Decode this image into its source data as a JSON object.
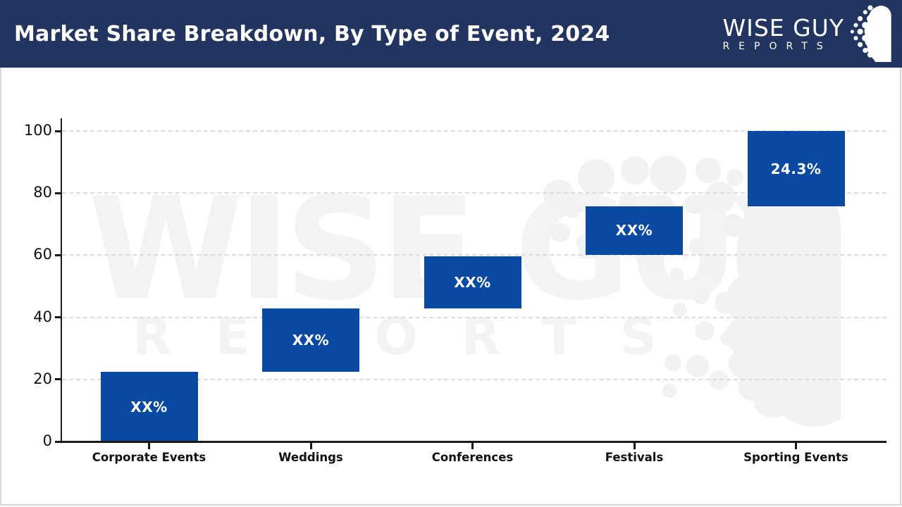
{
  "header": {
    "title": "Market Share Breakdown, By Type of Event, 2024",
    "bg_color": "#223460",
    "logo": {
      "line1": "WISE GUY",
      "line2": "REPORTS"
    }
  },
  "watermark": {
    "line1": "WISE GUY",
    "line2": "REPORTS"
  },
  "chart_data": {
    "type": "bar",
    "subtype": "waterfall",
    "title": "Market Share Breakdown, By Type of Event, 2024",
    "categories": [
      "Corporate Events",
      "Weddings",
      "Conferences",
      "Festivals",
      "Sporting Events"
    ],
    "segments": [
      {
        "category": "Corporate Events",
        "start": 0,
        "end": 22.4,
        "label": "XX%"
      },
      {
        "category": "Weddings",
        "start": 22.4,
        "end": 42.8,
        "label": "XX%"
      },
      {
        "category": "Conferences",
        "start": 42.8,
        "end": 59.6,
        "label": "XX%"
      },
      {
        "category": "Festivals",
        "start": 60.2,
        "end": 75.7,
        "label": "XX%"
      },
      {
        "category": "Sporting Events",
        "start": 75.7,
        "end": 100,
        "label": "24.3%"
      }
    ],
    "yticks": [
      0,
      20,
      40,
      60,
      80,
      100
    ],
    "ylim": [
      0,
      105
    ],
    "xlabel": "",
    "ylabel": "",
    "bar_color": "#0b4aa2",
    "bar_label_color": "#ffffff",
    "grid": "horizontal-dashed",
    "legend": "none"
  }
}
